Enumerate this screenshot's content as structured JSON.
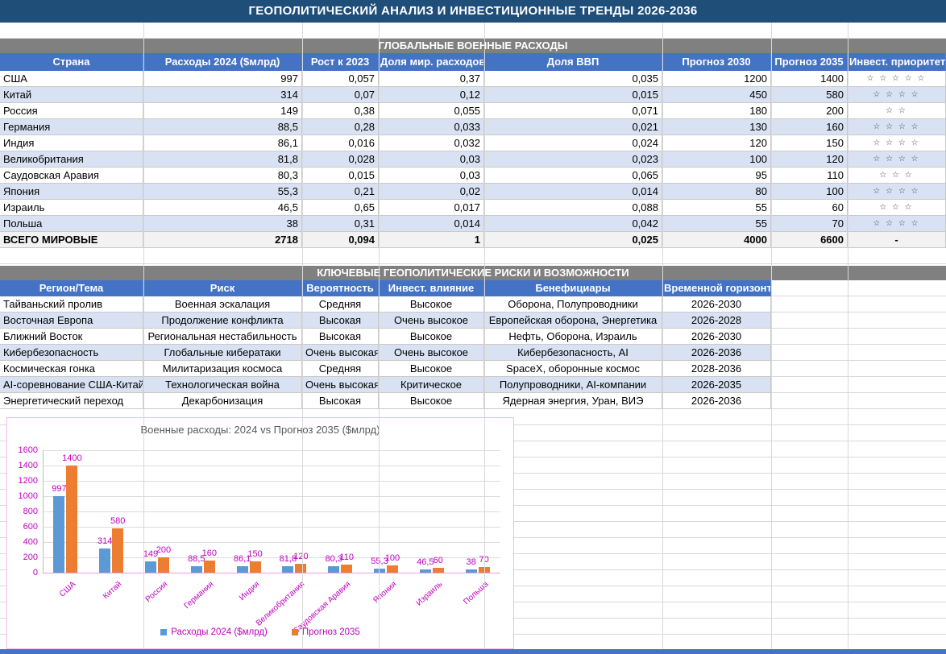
{
  "title": "ГЕОПОЛИТИЧЕСКИЙ АНАЛИЗ И ИНВЕСТИЦИОННЫЕ ТРЕНДЫ 2026-2036",
  "colors": {
    "title_bar": "#1F4E79",
    "section_band": "#808080",
    "header_row": "#4472C4",
    "alt_row": "#D9E2F3",
    "total_row": "#F2F2F2",
    "bar_2024": "#5B9BD5",
    "bar_2035": "#ED7D31",
    "chart_accent": "#C000C0",
    "chart_border": "#F2B9EE"
  },
  "military_table": {
    "band_title": "ГЛОБАЛЬНЫЕ ВОЕННЫЕ РАСХОДЫ",
    "columns": [
      "Страна",
      "Расходы 2024 ($млрд)",
      "Рост к 2023",
      "Доля мир. расходов",
      "Доля ВВП",
      "Прогноз 2030",
      "Прогноз 2035",
      "Инвест. приоритет"
    ],
    "rows": [
      [
        "США",
        "997",
        "0,057",
        "0,37",
        "0,035",
        "1200",
        "1400",
        "☆ ☆ ☆ ☆ ☆"
      ],
      [
        "Китай",
        "314",
        "0,07",
        "0,12",
        "0,015",
        "450",
        "580",
        "☆ ☆ ☆ ☆"
      ],
      [
        "Россия",
        "149",
        "0,38",
        "0,055",
        "0,071",
        "180",
        "200",
        "☆ ☆"
      ],
      [
        "Германия",
        "88,5",
        "0,28",
        "0,033",
        "0,021",
        "130",
        "160",
        "☆ ☆ ☆ ☆"
      ],
      [
        "Индия",
        "86,1",
        "0,016",
        "0,032",
        "0,024",
        "120",
        "150",
        "☆ ☆ ☆ ☆"
      ],
      [
        "Великобритания",
        "81,8",
        "0,028",
        "0,03",
        "0,023",
        "100",
        "120",
        "☆ ☆ ☆ ☆"
      ],
      [
        "Саудовская Аравия",
        "80,3",
        "0,015",
        "0,03",
        "0,065",
        "95",
        "110",
        "☆ ☆ ☆"
      ],
      [
        "Япония",
        "55,3",
        "0,21",
        "0,02",
        "0,014",
        "80",
        "100",
        "☆ ☆ ☆ ☆"
      ],
      [
        "Израиль",
        "46,5",
        "0,65",
        "0,017",
        "0,088",
        "55",
        "60",
        "☆ ☆ ☆"
      ],
      [
        "Польша",
        "38",
        "0,31",
        "0,014",
        "0,042",
        "55",
        "70",
        "☆ ☆ ☆ ☆"
      ]
    ],
    "total_row": [
      "ВСЕГО МИРОВЫЕ",
      "2718",
      "0,094",
      "1",
      "0,025",
      "4000",
      "6600",
      "-"
    ]
  },
  "risks_table": {
    "band_title": "КЛЮЧЕВЫЕ ГЕОПОЛИТИЧЕСКИЕ РИСКИ И ВОЗМОЖНОСТИ",
    "columns": [
      "Регион/Тема",
      "Риск",
      "Вероятность",
      "Инвест. влияние",
      "Бенефициары",
      "Временной горизонт"
    ],
    "rows": [
      [
        "Тайваньский пролив",
        "Военная эскалация",
        "Средняя",
        "Высокое",
        "Оборона, Полупроводники",
        "2026-2030"
      ],
      [
        "Восточная Европа",
        "Продолжение конфликта",
        "Высокая",
        "Очень высокое",
        "Европейская оборона, Энергетика",
        "2026-2028"
      ],
      [
        "Ближний Восток",
        "Региональная нестабильность",
        "Высокая",
        "Высокое",
        "Нефть, Оборона, Израиль",
        "2026-2030"
      ],
      [
        "Кибербезопасность",
        "Глобальные кибератаки",
        "Очень высокая",
        "Очень высокое",
        "Кибербезопасность, AI",
        "2026-2036"
      ],
      [
        "Космическая гонка",
        "Милитаризация космоса",
        "Средняя",
        "Высокое",
        "SpaceX, оборонные космос",
        "2028-2036"
      ],
      [
        "AI-соревнование США-Китай",
        "Технологическая война",
        "Очень высокая",
        "Критическое",
        "Полупроводники, AI-компании",
        "2026-2035"
      ],
      [
        "Энергетический переход",
        "Декарбонизация",
        "Высокая",
        "Высокое",
        "Ядерная энергия, Уран, ВИЭ",
        "2026-2036"
      ]
    ]
  },
  "chart_data": {
    "type": "bar",
    "title": "Военные расходы: 2024 vs Прогноз 2035 ($млрд)",
    "categories": [
      "США",
      "Китай",
      "Россия",
      "Германия",
      "Индия",
      "Великобритания",
      "Саудовская Аравия",
      "Япония",
      "Израиль",
      "Польша"
    ],
    "series": [
      {
        "name": "Расходы 2024 ($млрд)",
        "color": "#5B9BD5",
        "values": [
          997,
          314,
          149,
          88.5,
          86.1,
          81.8,
          80.3,
          55.3,
          46.5,
          38
        ],
        "labels": [
          "997",
          "314",
          "149",
          "88,5",
          "86,1",
          "81,8",
          "80,3",
          "55,3",
          "46,5",
          "38"
        ]
      },
      {
        "name": "Прогноз 2035",
        "color": "#ED7D31",
        "values": [
          1400,
          580,
          200,
          160,
          150,
          120,
          110,
          100,
          60,
          70
        ],
        "labels": [
          "1400",
          "580",
          "200",
          "160",
          "150",
          "120",
          "110",
          "100",
          "60",
          "70"
        ]
      }
    ],
    "ylim": [
      0,
      1600
    ],
    "yticks": [
      0,
      200,
      400,
      600,
      800,
      1000,
      1200,
      1400,
      1600
    ],
    "grid": true,
    "legend_position": "bottom"
  }
}
